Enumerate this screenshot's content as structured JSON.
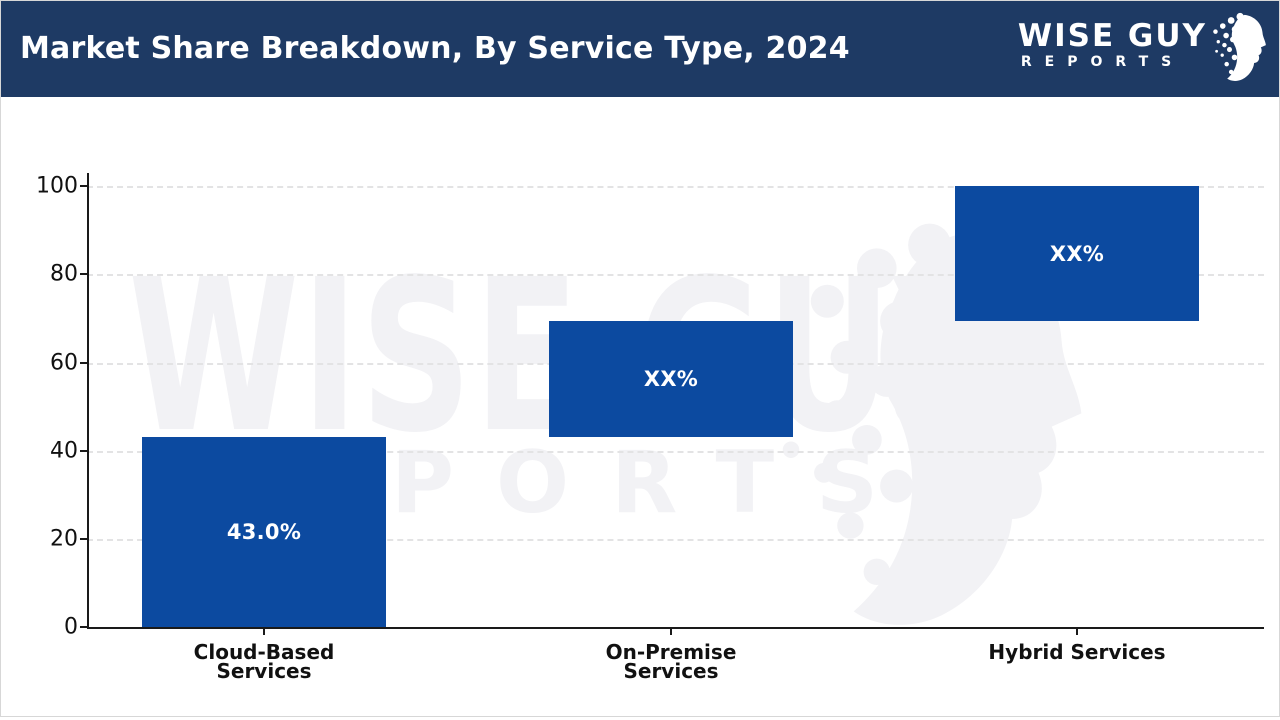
{
  "header": {
    "title": "Market Share Breakdown, By Service Type, 2024",
    "logo": {
      "line1": "WISE GUY",
      "line2": "REPORTS"
    }
  },
  "watermark": {
    "line1": "WISE GUY",
    "line2": "REPORTS"
  },
  "colors": {
    "header_bg": "#1e3a64",
    "bar_blue": "#0c4aa0",
    "grid_gray": "#e3e3e4",
    "watermark_gray": "#f2f2f5",
    "axis_black": "#1a1a1a"
  },
  "chart_data": {
    "type": "bar",
    "subtype": "waterfall",
    "title": "Market Share Breakdown, By Service Type, 2024",
    "categories": [
      "Cloud-Based\nServices",
      "On-Premise\nServices",
      "Hybrid Services"
    ],
    "segments": [
      {
        "category": "Cloud-Based Services",
        "start": 0,
        "end": 43.0,
        "label": "43.0%"
      },
      {
        "category": "On-Premise Services",
        "start": 43.0,
        "end": 69.5,
        "label": "XX%"
      },
      {
        "category": "Hybrid Services",
        "start": 69.5,
        "end": 100.0,
        "label": "XX%"
      }
    ],
    "y_ticks": [
      0,
      20,
      40,
      60,
      80,
      100
    ],
    "ylim": [
      0,
      103
    ],
    "xlabel": "",
    "ylabel": "",
    "grid": "horizontal-dashed",
    "legend": "none",
    "bar_color": "#0c4aa0"
  }
}
